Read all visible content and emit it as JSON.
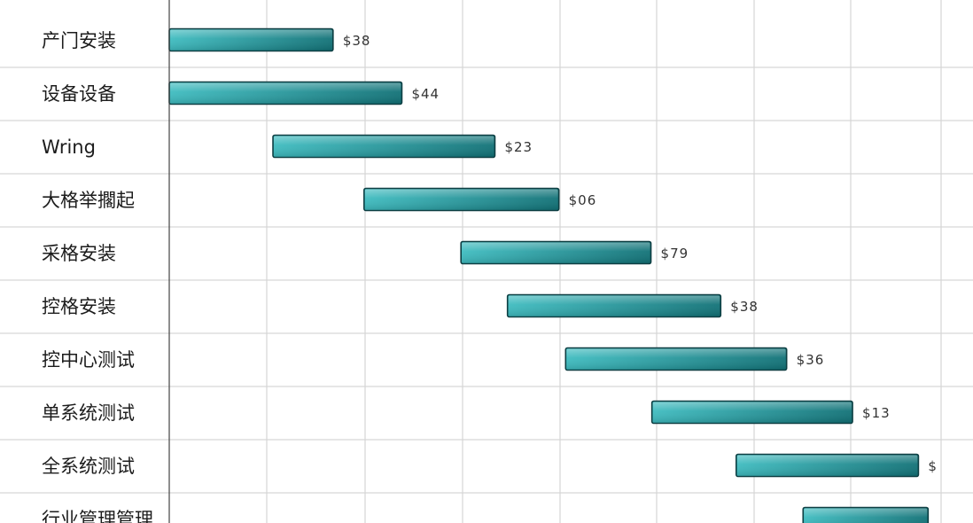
{
  "chart_data": {
    "type": "bar",
    "orientation": "horizontal-gantt",
    "categories": [
      "产门安装",
      "设备设备",
      "Wring",
      "大格举擱起",
      "采格安装",
      "控格安装",
      "控中心测试",
      "单系统测试",
      "全系统测试",
      "行业管理管理"
    ],
    "series": [
      {
        "start": [
          0,
          0,
          107,
          201,
          301,
          349,
          409,
          498,
          585,
          654
        ],
        "end": [
          169,
          240,
          336,
          402,
          497,
          569,
          637,
          705,
          773,
          783
        ],
        "value_labels": [
          "$38",
          "$44",
          "$23",
          "$06",
          "$79",
          "$38",
          "$36",
          "$13",
          "$",
          ""
        ]
      }
    ],
    "xlim": [
      0,
      790
    ],
    "grid": true,
    "legend": "none",
    "colors": {
      "bar_light": "#3fbcc0",
      "bar_dark": "#127277",
      "bar_stroke": "#0e3e42",
      "grid": "#d6d6d6",
      "axis": "#444444",
      "text": "#1c1c1c"
    }
  }
}
